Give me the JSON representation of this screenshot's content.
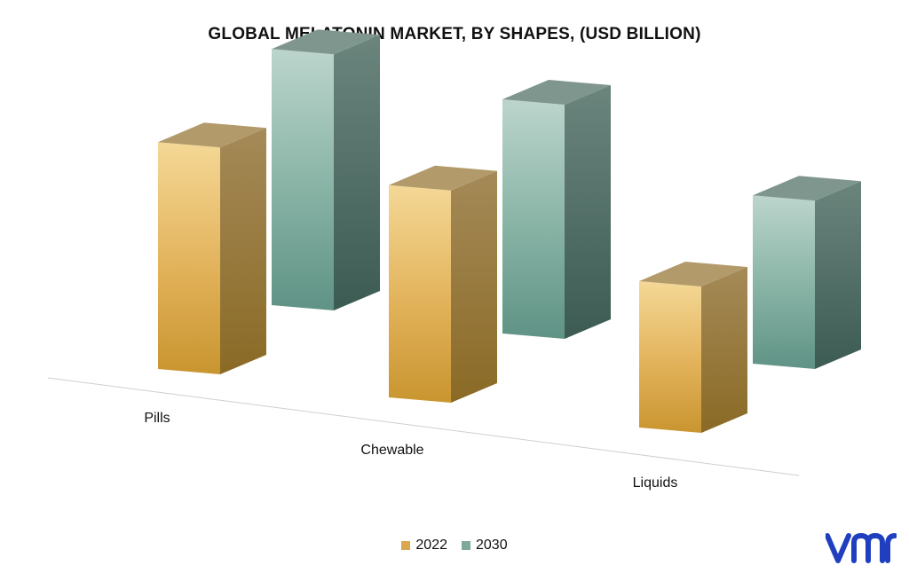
{
  "chart_data": {
    "type": "bar",
    "title": "GLOBAL MELATONIN MARKET, BY SHAPES, (USD BILLION)",
    "categories": [
      "Pills",
      "Chewable",
      "Liquids"
    ],
    "series": [
      {
        "name": "2022",
        "values": [
          0.62,
          0.58,
          0.4
        ],
        "color": "#d9a84e"
      },
      {
        "name": "2030",
        "values": [
          0.7,
          0.64,
          0.46
        ],
        "color": "#7fa89c"
      }
    ],
    "xlabel": "",
    "ylabel": "",
    "ylim": [
      0,
      0.8
    ],
    "grid": false,
    "legend_position": "bottom-center",
    "style": "3d-column"
  },
  "legend": {
    "items": [
      {
        "label": "2022",
        "color": "#d9a84e"
      },
      {
        "label": "2030",
        "color": "#7fa89c"
      }
    ]
  },
  "logo": {
    "name": "vmr-logo",
    "color": "#1f3fbf"
  }
}
